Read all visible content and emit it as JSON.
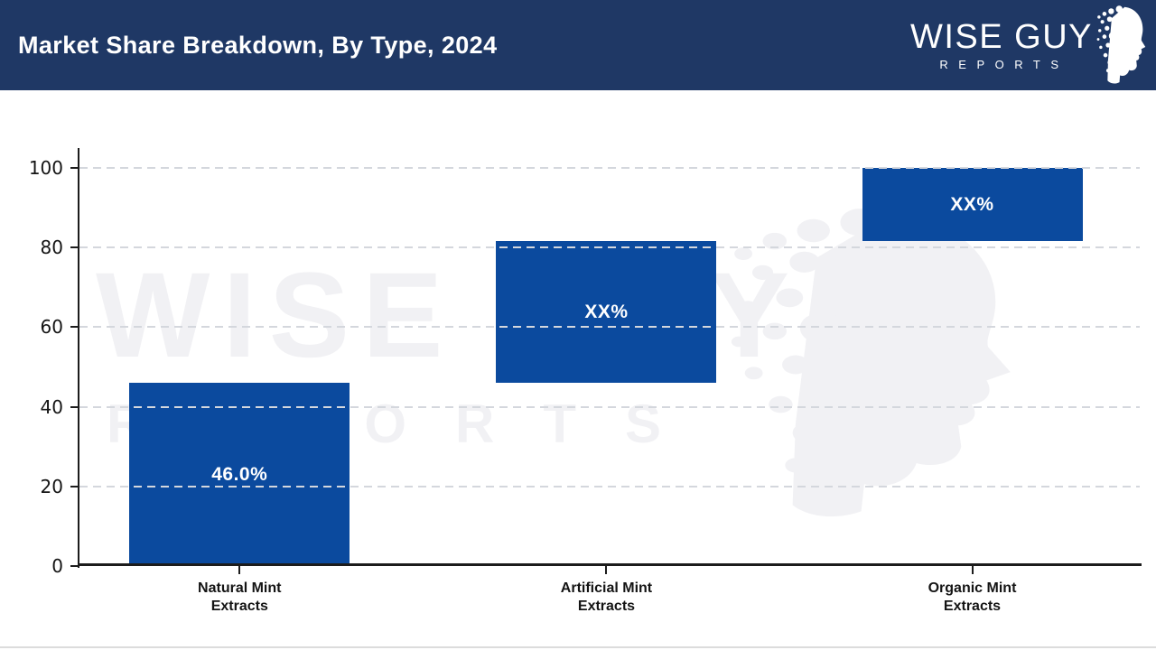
{
  "header": {
    "bg_color": "#1f3865",
    "title": "Market Share Breakdown, By Type, 2024",
    "logo": {
      "wordmark": "WISE GUY",
      "subtext": "REPORTS",
      "head_icon": "dotted-head-profile"
    }
  },
  "watermark": {
    "wordmark": "WISE GUY",
    "subtext": "REPORTS",
    "head_icon": "dotted-head-profile",
    "color": "#f1f1f4"
  },
  "chart_data": {
    "type": "bar",
    "subtype": "floating-segment-waterfall",
    "title": "Market Share Breakdown, By Type, 2024",
    "categories": [
      "Natural Mint Extracts",
      "Artificial Mint Extracts",
      "Organic Mint Extracts"
    ],
    "categories_wrapped": [
      [
        "Natural Mint",
        "Extracts"
      ],
      [
        "Artificial Mint",
        "Extracts"
      ],
      [
        "Organic Mint",
        "Extracts"
      ]
    ],
    "segments": [
      {
        "category": "Natural Mint Extracts",
        "start": 0,
        "end": 46,
        "label": "46.0%"
      },
      {
        "category": "Artificial Mint Extracts",
        "start": 46,
        "end": 81.6,
        "label": "XX%"
      },
      {
        "category": "Organic Mint Extracts",
        "start": 81.6,
        "end": 100,
        "label": "XX%"
      }
    ],
    "xlabel": "",
    "ylabel": "",
    "ylim": [
      0,
      105
    ],
    "yticks": [
      0,
      20,
      40,
      60,
      80,
      100
    ],
    "grid": "horizontal-dashed",
    "legend": "none",
    "bar_color": "#0b4a9e",
    "bar_label_color": "#ffffff",
    "axis_color": "#1c1c1c",
    "grid_color": "#d4d7dd",
    "tick_label_color": "#141414"
  }
}
